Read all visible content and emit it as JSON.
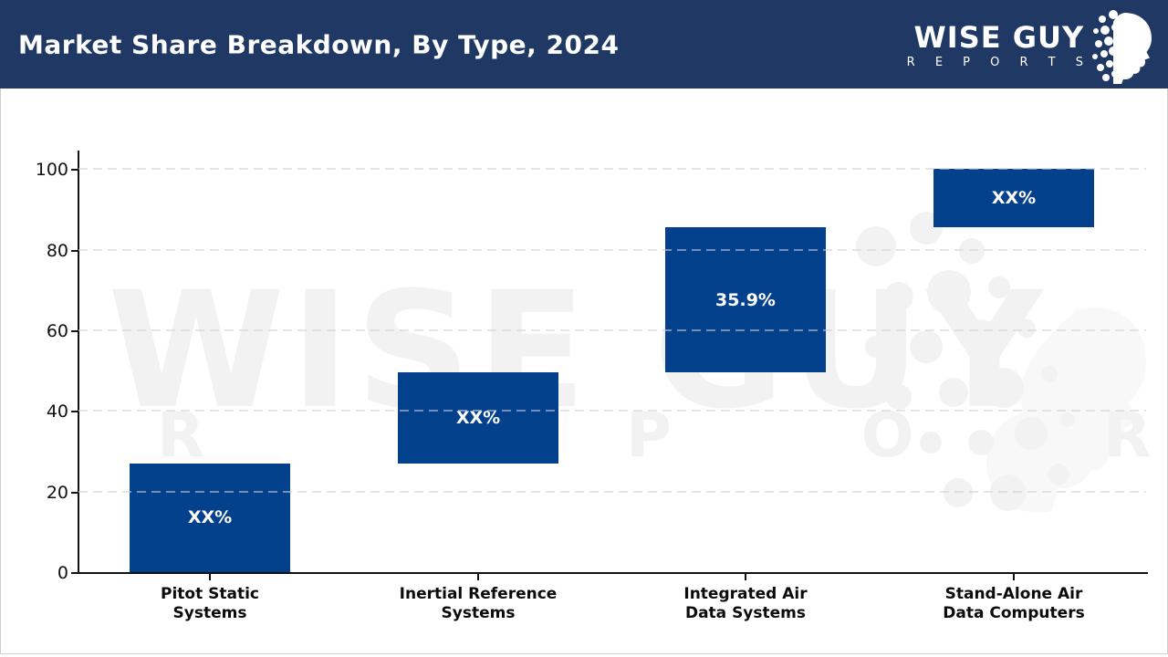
{
  "header": {
    "title": "Market Share Breakdown, By Type, 2024",
    "bg_color": "#1f3864",
    "logo": {
      "line1": "WISE GUY",
      "line2": "R E P O R T S"
    }
  },
  "watermark": {
    "line1": "WISE GUY",
    "line2": "R E P O R T S"
  },
  "chart_data": {
    "type": "bar",
    "subtype": "stacked-segment-waterfall",
    "title": "Market Share Breakdown, By Type, 2024",
    "xlabel": "",
    "ylabel": "",
    "categories": [
      [
        "Pitot Static",
        "Systems"
      ],
      [
        "Inertial Reference",
        "Systems"
      ],
      [
        "Integrated Air",
        "Data Systems"
      ],
      [
        "Stand-Alone Air",
        "Data Computers"
      ]
    ],
    "segments": [
      {
        "label": "XX%",
        "start": 0,
        "end": 27,
        "value_shown": "XX%",
        "value_est": 27.0
      },
      {
        "label": "XX%",
        "start": 27,
        "end": 49.6,
        "value_shown": "XX%",
        "value_est": 22.6
      },
      {
        "label": "35.9%",
        "start": 49.6,
        "end": 85.5,
        "value_shown": "35.9%",
        "value_est": 35.9
      },
      {
        "label": "XX%",
        "start": 85.5,
        "end": 100,
        "value_shown": "XX%",
        "value_est": 14.5
      }
    ],
    "yticks": [
      0,
      20,
      40,
      60,
      80,
      100
    ],
    "ylim": [
      0,
      105
    ],
    "grid": true,
    "grid_style": "dashed",
    "grid_over_bars": true,
    "legend": "none",
    "bar_color": "#04418c",
    "axis_color": "#111111",
    "gridline_color": "#d9d9d9"
  }
}
